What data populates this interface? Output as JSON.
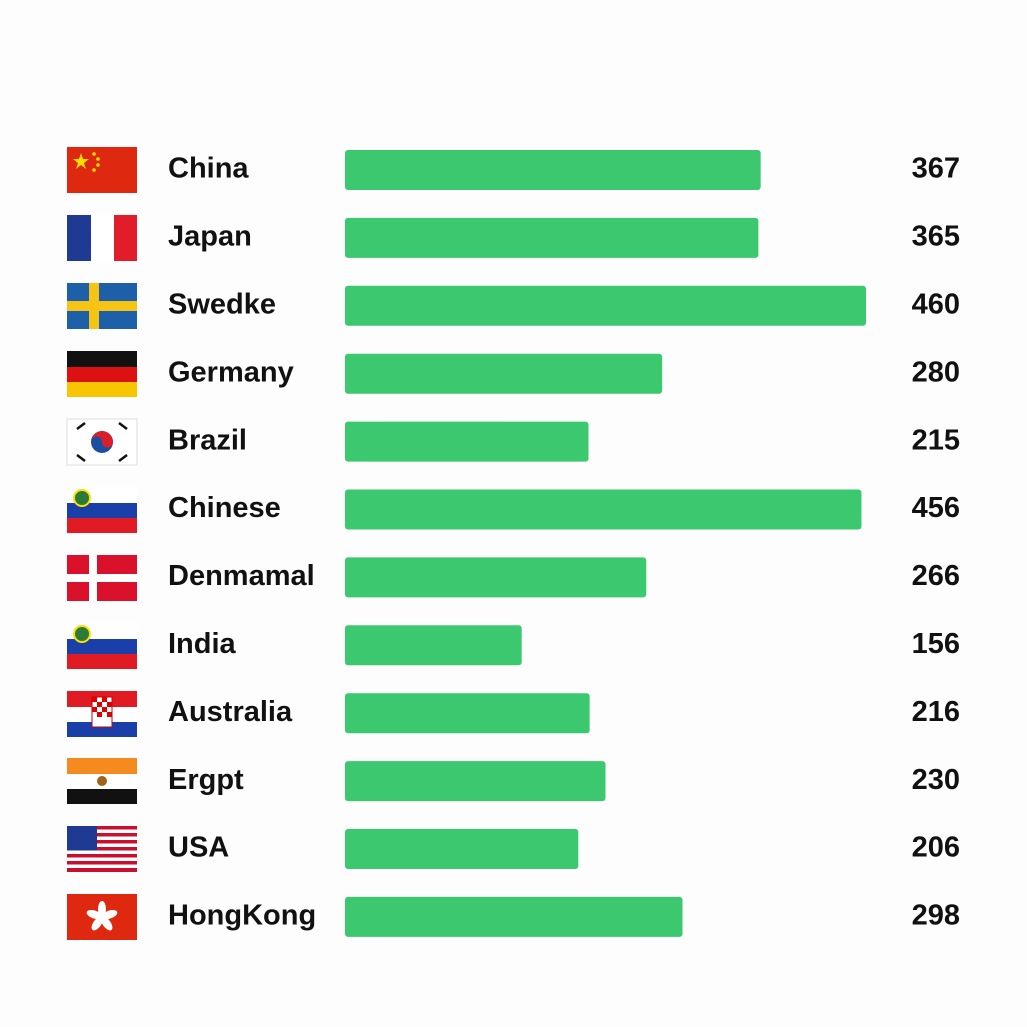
{
  "chart_data": {
    "type": "bar",
    "orientation": "horizontal",
    "categories": [
      "China",
      "Japan",
      "Swedke",
      "Germany",
      "Brazil",
      "Chinese",
      "Denmamal",
      "India",
      "Australia",
      "Ergpt",
      "USA",
      "HongKong"
    ],
    "values": [
      367,
      365,
      460,
      280,
      215,
      456,
      266,
      156,
      216,
      230,
      206,
      298
    ],
    "color": "#3cc86e"
  }
}
